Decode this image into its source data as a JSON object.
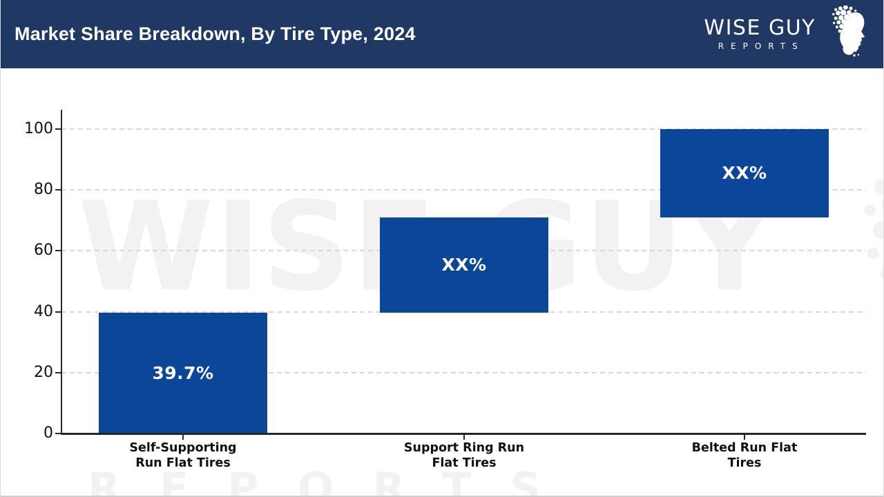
{
  "header": {
    "title": "Market Share Breakdown, By Tire Type, 2024",
    "logo": {
      "wordmark": "WISE GUY",
      "subtext": "REPORTS"
    }
  },
  "watermark": {
    "wordmark": "WISE GUY",
    "subtext": "REPORTS"
  },
  "chart_data": {
    "type": "bar",
    "variant": "waterfall",
    "title": "Market Share Breakdown, By Tire Type, 2024",
    "categories": [
      [
        "Self-Supporting",
        "Run Flat Tires"
      ],
      [
        "Support Ring Run",
        "Flat Tires"
      ],
      [
        "Belted Run Flat",
        "Tires"
      ]
    ],
    "segments": [
      {
        "start": 0,
        "end": 39.7,
        "label": "39.7%"
      },
      {
        "start": 39.7,
        "end": 71,
        "label": "XX%"
      },
      {
        "start": 71,
        "end": 100,
        "label": "XX%"
      }
    ],
    "yticks": [
      0,
      20,
      40,
      60,
      80,
      100
    ],
    "ylim": [
      0,
      100
    ],
    "xlabel": "",
    "ylabel": "",
    "grid": "horizontal-dashed",
    "legend": "none",
    "colors": {
      "bar": "#0b4699",
      "bar_label": "#ffffff",
      "axis": "#262626",
      "grid": "#d9d9d9",
      "header_bg": "#1f3864",
      "watermark": "#f2f2f2"
    }
  }
}
